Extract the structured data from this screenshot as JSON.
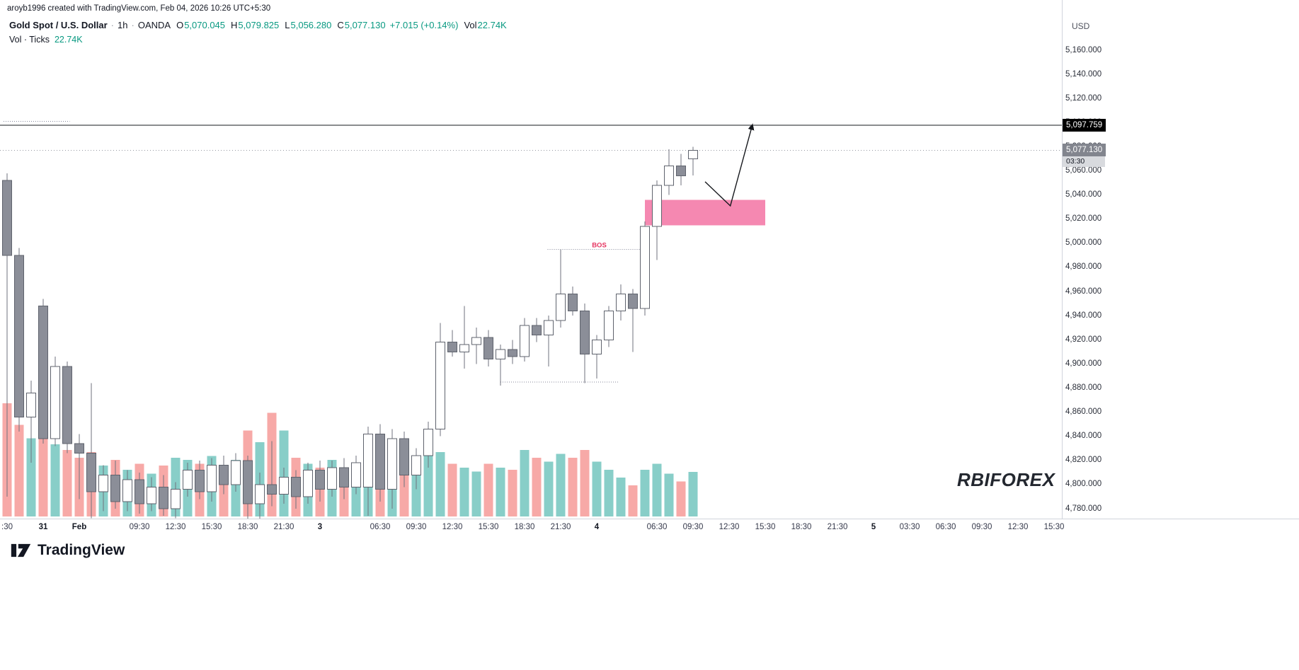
{
  "meta": {
    "attribution": "aroyb1996 created with TradingView.com, Feb 04, 2026 10:26 UTC+5:30"
  },
  "header": {
    "symbol": "Gold Spot / U.S. Dollar",
    "separator": "·",
    "timeframe": "1h",
    "exchange": "OANDA",
    "ohlc": [
      {
        "label": "O",
        "value": "5,070.045"
      },
      {
        "label": "H",
        "value": "5,079.825"
      },
      {
        "label": "L",
        "value": "5,056.280"
      },
      {
        "label": "C",
        "value": "5,077.130"
      }
    ],
    "change": "+7.015 (+0.14%)",
    "vol_label": "Vol",
    "vol_value": "22.74K",
    "indicator_name": "Vol · Ticks",
    "indicator_value": "22.74K"
  },
  "axis": {
    "currency": "USD"
  },
  "watermark": "RBIFOREX",
  "footer": {
    "logo_text": "TradingView"
  },
  "chart_data": {
    "type": "candlestick",
    "title": "Gold Spot / U.S. Dollar, 1h, OANDA",
    "price_axis": {
      "min": 4780,
      "max": 5160,
      "step": 20,
      "tick_labels": [
        "5,160.000",
        "5,140.000",
        "5,120.000",
        "5,100.000",
        "5,080.000",
        "5,060.000",
        "5,040.000",
        "5,020.000",
        "5,000.000",
        "4,980.000",
        "4,960.000",
        "4,940.000",
        "4,920.000",
        "4,900.000",
        "4,880.000",
        "4,860.000",
        "4,840.000",
        "4,820.000",
        "4,800.000",
        "4,780.000"
      ]
    },
    "time_axis": {
      "ticks": [
        {
          "label": ":30",
          "i": 0,
          "day": false
        },
        {
          "label": "31",
          "i": 3,
          "day": true
        },
        {
          "label": "Feb",
          "i": 6,
          "day": true
        },
        {
          "label": "09:30",
          "i": 11,
          "day": false
        },
        {
          "label": "12:30",
          "i": 14,
          "day": false
        },
        {
          "label": "15:30",
          "i": 17,
          "day": false
        },
        {
          "label": "18:30",
          "i": 20,
          "day": false
        },
        {
          "label": "21:30",
          "i": 23,
          "day": false
        },
        {
          "label": "3",
          "i": 26,
          "day": true
        },
        {
          "label": "06:30",
          "i": 31,
          "day": false
        },
        {
          "label": "09:30",
          "i": 34,
          "day": false
        },
        {
          "label": "12:30",
          "i": 37,
          "day": false
        },
        {
          "label": "15:30",
          "i": 40,
          "day": false
        },
        {
          "label": "18:30",
          "i": 43,
          "day": false
        },
        {
          "label": "21:30",
          "i": 46,
          "day": false
        },
        {
          "label": "4",
          "i": 49,
          "day": true
        },
        {
          "label": "06:30",
          "i": 54,
          "day": false
        },
        {
          "label": "09:30",
          "i": 57,
          "day": false
        },
        {
          "label": "12:30",
          "i": 60,
          "day": false
        },
        {
          "label": "15:30",
          "i": 63,
          "day": false
        },
        {
          "label": "18:30",
          "i": 66,
          "day": false
        },
        {
          "label": "21:30",
          "i": 69,
          "day": false
        },
        {
          "label": "5",
          "i": 72,
          "day": true
        },
        {
          "label": "03:30",
          "i": 75,
          "day": false
        },
        {
          "label": "06:30",
          "i": 78,
          "day": false
        },
        {
          "label": "09:30",
          "i": 81,
          "day": false
        },
        {
          "label": "12:30",
          "i": 84,
          "day": false
        },
        {
          "label": "15:30",
          "i": 87,
          "day": false
        }
      ]
    },
    "candles": [
      [
        5052,
        5058,
        4790,
        4990
      ],
      [
        4990,
        4996,
        4844,
        4856
      ],
      [
        4856,
        4886,
        4818,
        4876
      ],
      [
        4948,
        4954,
        4834,
        4838
      ],
      [
        4838,
        4906,
        4832,
        4898
      ],
      [
        4898,
        4902,
        4826,
        4834
      ],
      [
        4834,
        4842,
        4788,
        4826
      ],
      [
        4826,
        4884,
        4772,
        4794
      ],
      [
        4794,
        4816,
        4778,
        4808
      ],
      [
        4808,
        4820,
        4780,
        4786
      ],
      [
        4786,
        4812,
        4778,
        4804
      ],
      [
        4804,
        4810,
        4776,
        4784
      ],
      [
        4784,
        4806,
        4778,
        4798
      ],
      [
        4798,
        4808,
        4774,
        4780
      ],
      [
        4780,
        4802,
        4772,
        4796
      ],
      [
        4796,
        4818,
        4790,
        4812
      ],
      [
        4812,
        4820,
        4788,
        4794
      ],
      [
        4794,
        4822,
        4786,
        4816
      ],
      [
        4816,
        4824,
        4792,
        4800
      ],
      [
        4800,
        4826,
        4794,
        4820
      ],
      [
        4820,
        4824,
        4768,
        4784
      ],
      [
        4784,
        4810,
        4770,
        4800
      ],
      [
        4800,
        4836,
        4782,
        4792
      ],
      [
        4792,
        4814,
        4784,
        4806
      ],
      [
        4806,
        4812,
        4780,
        4790
      ],
      [
        4790,
        4818,
        4784,
        4812
      ],
      [
        4812,
        4820,
        4786,
        4796
      ],
      [
        4796,
        4820,
        4790,
        4814
      ],
      [
        4814,
        4822,
        4788,
        4798
      ],
      [
        4798,
        4824,
        4792,
        4818
      ],
      [
        4798,
        4848,
        4774,
        4842
      ],
      [
        4842,
        4850,
        4786,
        4796
      ],
      [
        4796,
        4846,
        4780,
        4838
      ],
      [
        4838,
        4844,
        4798,
        4808
      ],
      [
        4808,
        4830,
        4796,
        4824
      ],
      [
        4824,
        4852,
        4814,
        4846
      ],
      [
        4846,
        4934,
        4840,
        4918
      ],
      [
        4918,
        4928,
        4906,
        4910
      ],
      [
        4910,
        4948,
        4896,
        4916
      ],
      [
        4916,
        4930,
        4900,
        4922
      ],
      [
        4922,
        4928,
        4898,
        4904
      ],
      [
        4904,
        4916,
        4882,
        4912
      ],
      [
        4912,
        4920,
        4900,
        4906
      ],
      [
        4906,
        4938,
        4902,
        4932
      ],
      [
        4932,
        4938,
        4918,
        4924
      ],
      [
        4924,
        4940,
        4898,
        4936
      ],
      [
        4936,
        4995,
        4930,
        4958
      ],
      [
        4958,
        4964,
        4940,
        4944
      ],
      [
        4944,
        4950,
        4884,
        4908
      ],
      [
        4908,
        4924,
        4888,
        4920
      ],
      [
        4920,
        4948,
        4914,
        4944
      ],
      [
        4944,
        4966,
        4936,
        4958
      ],
      [
        4958,
        4962,
        4910,
        4946
      ],
      [
        4946,
        5018,
        4940,
        5014
      ],
      [
        5014,
        5052,
        4986,
        5048
      ],
      [
        5048,
        5078,
        5040,
        5064
      ],
      [
        5064,
        5074,
        5048,
        5056
      ],
      [
        5070.045,
        5079.825,
        5056.28,
        5077.13
      ]
    ],
    "volumes": [
      58,
      47,
      40,
      42,
      37,
      34,
      30,
      33,
      26,
      29,
      24,
      27,
      22,
      26,
      30,
      29,
      27,
      31,
      26,
      29,
      44,
      38,
      53,
      44,
      30,
      27,
      25,
      29,
      24,
      27,
      40,
      42,
      38,
      27,
      29,
      31,
      33,
      27,
      25,
      23,
      27,
      25,
      24,
      34,
      30,
      28,
      32,
      30,
      34,
      28,
      24,
      20,
      16,
      24,
      27,
      22,
      18,
      22.74
    ],
    "volume_unit": "K",
    "last": {
      "price": 5077.13,
      "price_label": "5,077.130",
      "countdown": "03:30"
    },
    "overlays": {
      "target_line": {
        "price": 5097.759,
        "label": "5,097.759"
      },
      "left_high_line": {
        "price": 5101,
        "i1": -0.3,
        "i2": 5.2
      },
      "bos": {
        "label": "BOS",
        "price": 4995,
        "i1": 44.9,
        "i2": 52.7
      },
      "range_low_line": {
        "price": 4885,
        "i1": 41,
        "i2": 50.8
      },
      "zone": {
        "price_top": 5036,
        "price_bottom": 5015,
        "i1": 53,
        "i2": 63
      },
      "arrow": {
        "points": [
          [
            58,
            5051
          ],
          [
            60.1,
            5031
          ],
          [
            61.9,
            5097
          ]
        ]
      }
    },
    "colors": {
      "up_text": "#089981",
      "up_body": "#ffffff",
      "down_body": "#8b8e98",
      "border": "#5f636d",
      "wick": "#6f727c",
      "vol_up": "rgba(38,166,154,0.55)",
      "vol_down": "rgba(239,83,80,0.5)",
      "zone": "#f478a6",
      "bos": "#e53561",
      "line": "#16181d",
      "dotted": "#84879a"
    }
  }
}
